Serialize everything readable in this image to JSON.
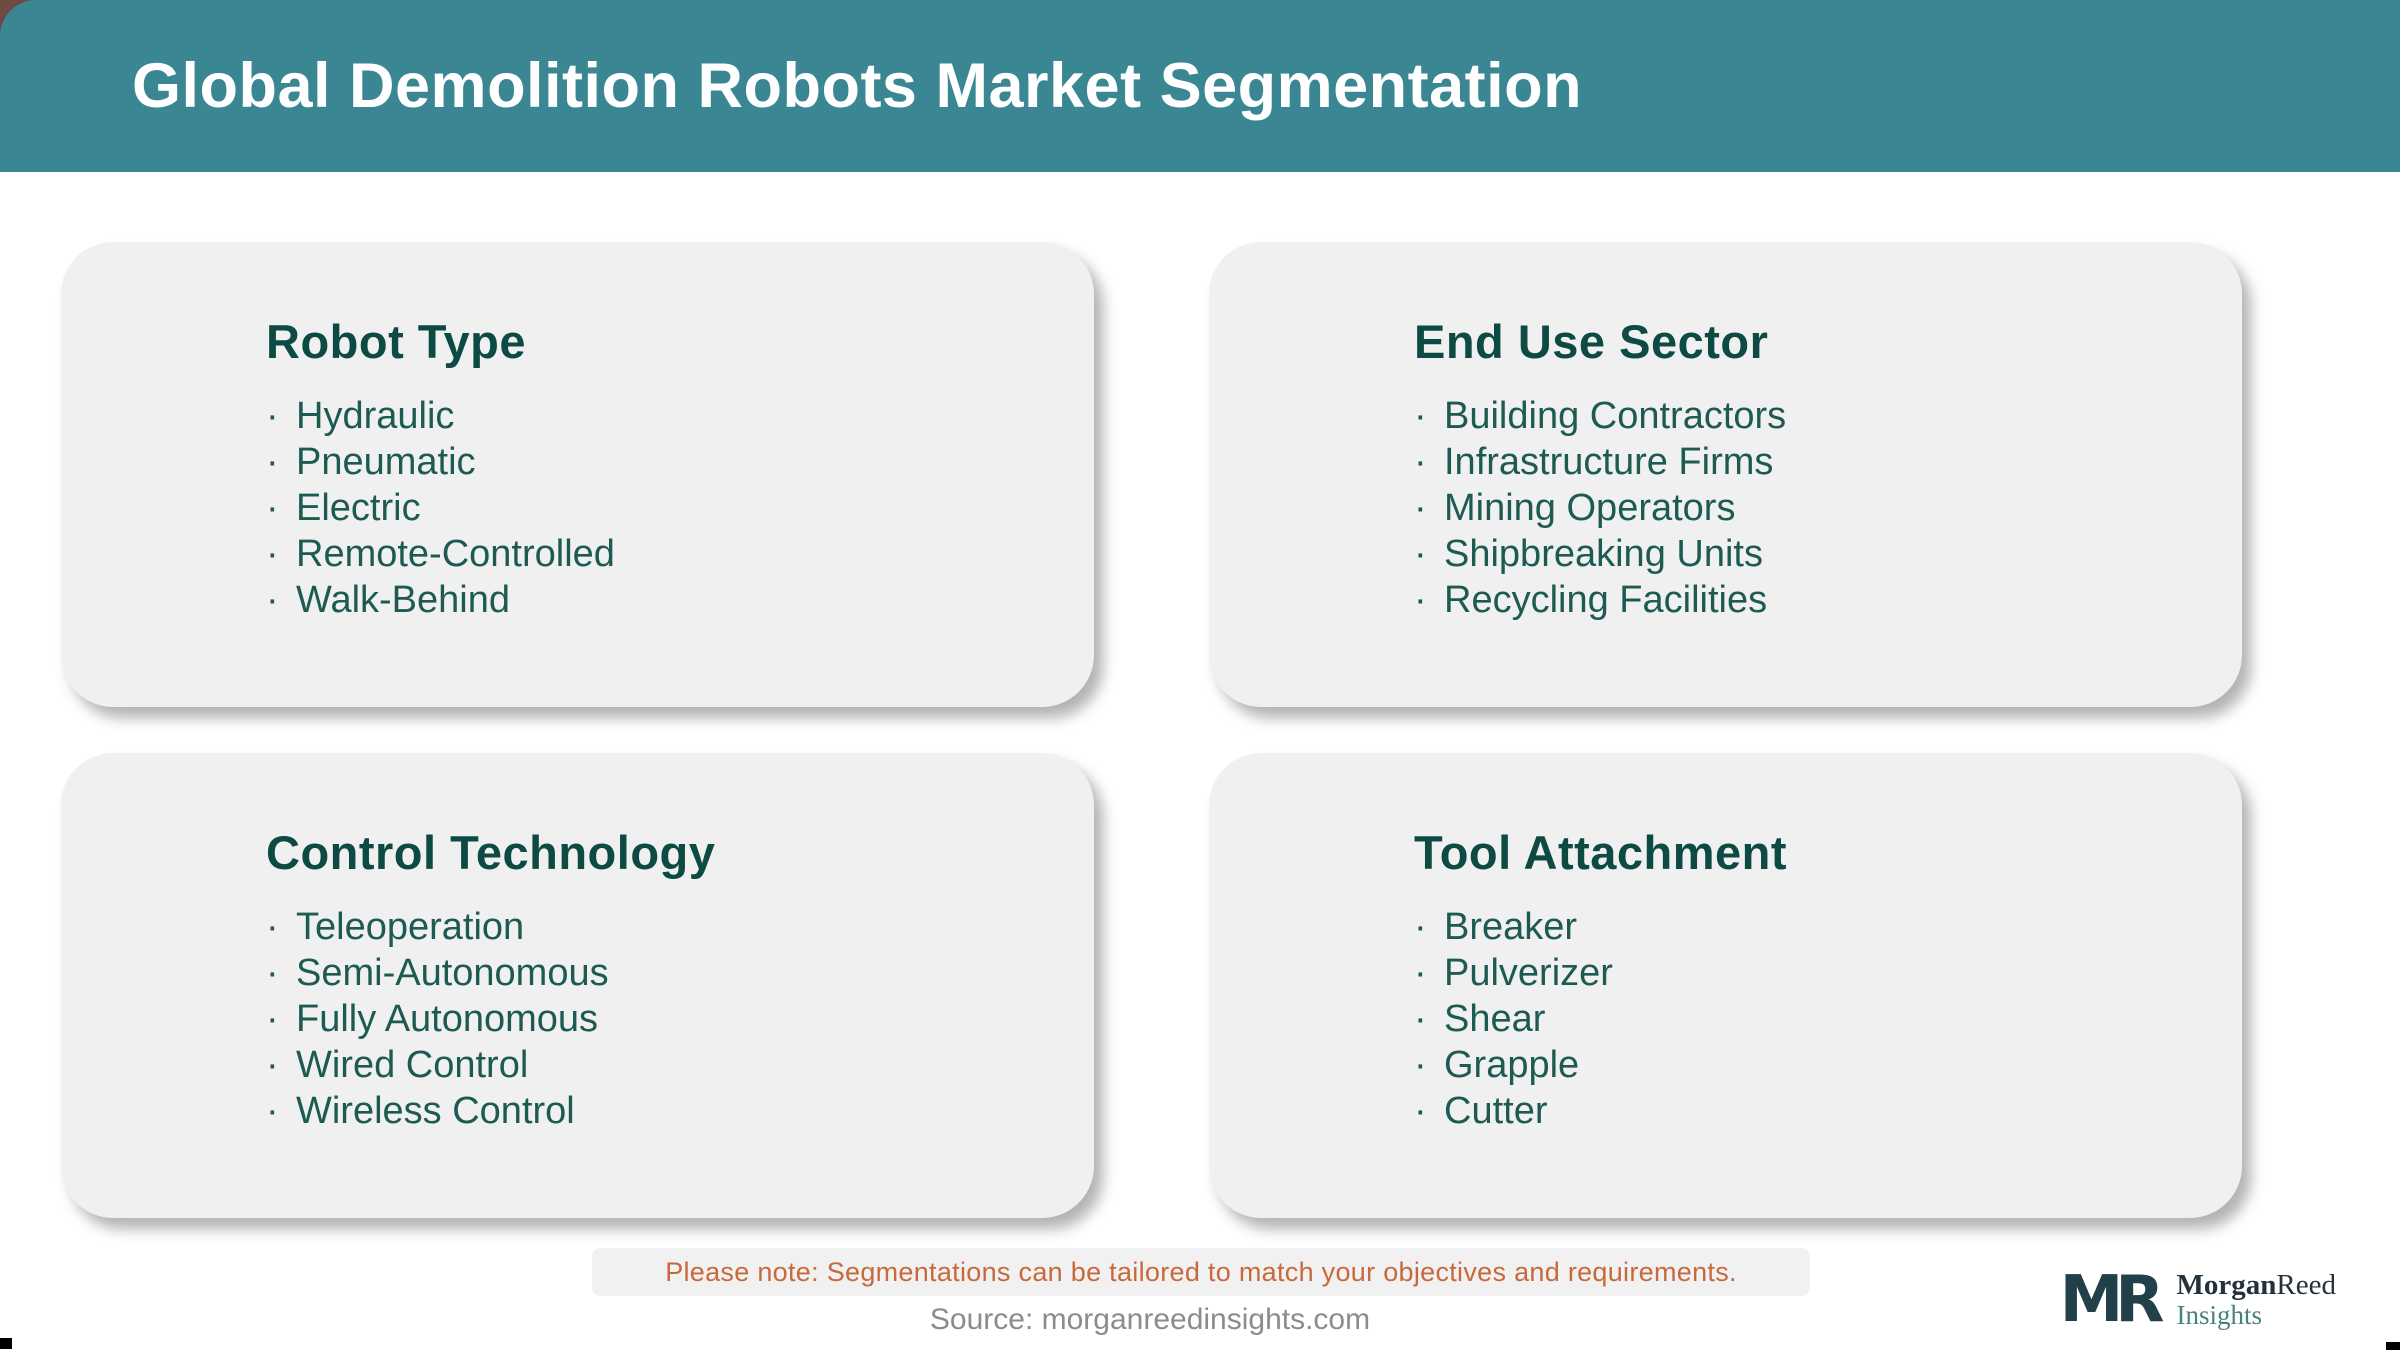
{
  "header": {
    "title": "Global Demolition Robots Market Segmentation",
    "bg_color": "#3A8793",
    "text_color": "#FFFFFF"
  },
  "list_bullet": "·",
  "cards": [
    {
      "title": "Robot Type",
      "items": [
        "Hydraulic",
        "Pneumatic",
        "Electric",
        "Remote-Controlled",
        "Walk-Behind"
      ]
    },
    {
      "title": "End Use Sector",
      "items": [
        "Building Contractors",
        "Infrastructure Firms",
        "Mining Operators",
        "Shipbreaking Units",
        "Recycling Facilities"
      ]
    },
    {
      "title": "Control Technology",
      "items": [
        "Teleoperation",
        "Semi-Autonomous",
        "Fully Autonomous",
        "Wired Control",
        "Wireless Control"
      ]
    },
    {
      "title": "Tool Attachment",
      "items": [
        "Breaker",
        "Pulverizer",
        "Shear",
        "Grapple",
        "Cutter"
      ]
    }
  ],
  "note": {
    "text": "Please note: Segmentations can be tailored to match your objectives and requirements.",
    "text_color": "#C8693B",
    "bg_color": "#F1F1F1"
  },
  "source": {
    "text": "Source: morganreedinsights.com",
    "text_color": "#8C8C8C"
  },
  "logo": {
    "monogram": "MR",
    "name_bold": "Morgan",
    "name_regular": "Reed",
    "tagline": "Insights",
    "navy_color": "#24323E",
    "teal_color": "#47837C"
  },
  "colors": {
    "card_bg": "#F0F0F0",
    "card_title": "#0D4A44",
    "card_item": "#1D5B52"
  }
}
